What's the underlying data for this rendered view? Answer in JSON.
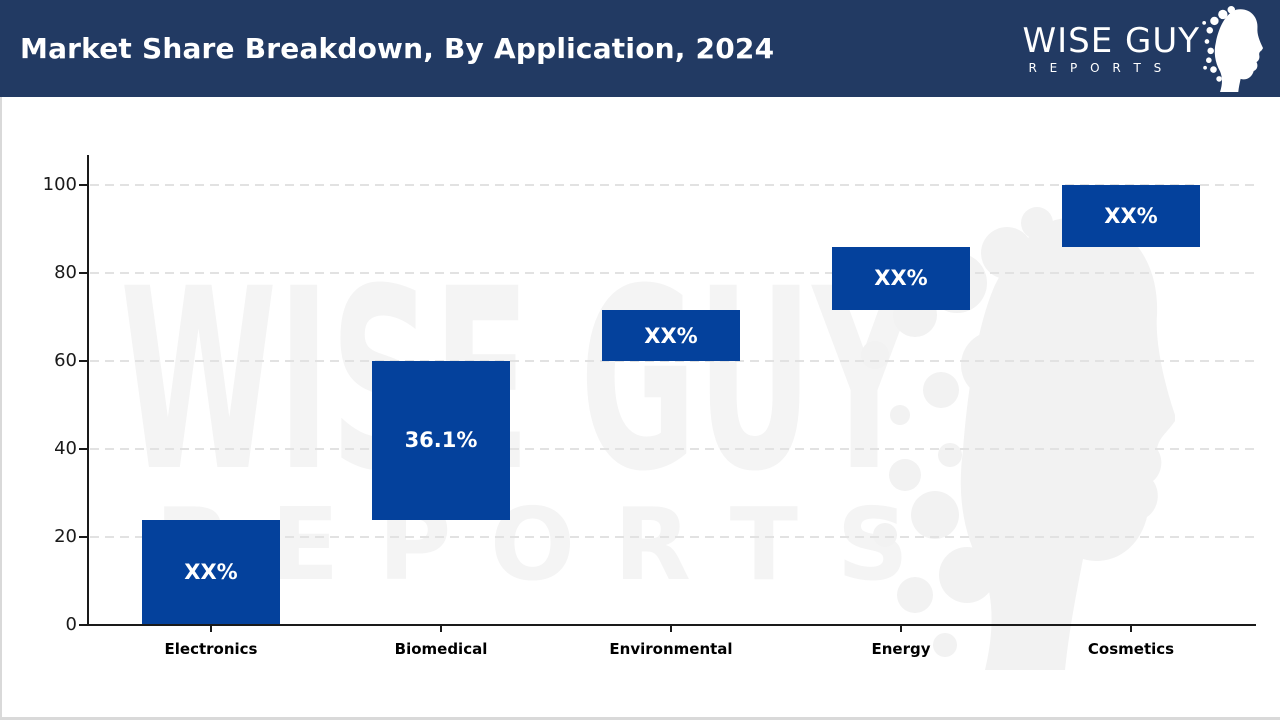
{
  "header": {
    "title": "Market Share Breakdown, By Application, 2024",
    "logo": {
      "wordmark": "WISE GUY",
      "tagline": "R E P O R T S",
      "head_icon": "dotted-head-profile"
    }
  },
  "watermark": {
    "wordmark": "WISE GUY",
    "tagline": "R E P O R T S",
    "head_icon": "dotted-head-profile"
  },
  "chart_data": {
    "type": "bar",
    "variant": "waterfall",
    "title": "Market Share Breakdown, By Application, 2024",
    "xlabel": "",
    "ylabel": "",
    "categories": [
      "Electronics",
      "Biomedical",
      "Environmental",
      "Energy",
      "Cosmetics"
    ],
    "segments": [
      {
        "category": "Electronics",
        "start": 0,
        "end": 23.9,
        "label": "XX%"
      },
      {
        "category": "Biomedical",
        "start": 23.9,
        "end": 60.0,
        "label": "36.1%"
      },
      {
        "category": "Environmental",
        "start": 60.0,
        "end": 71.5,
        "label": "XX%"
      },
      {
        "category": "Energy",
        "start": 71.5,
        "end": 86.0,
        "label": "XX%"
      },
      {
        "category": "Cosmetics",
        "start": 86.0,
        "end": 100.0,
        "label": "XX%"
      }
    ],
    "yticks": [
      0,
      20,
      40,
      60,
      80,
      100
    ],
    "ylim": [
      0,
      105
    ],
    "grid": "horizontal-dashed",
    "legend": "none",
    "bar_color": "#04419c",
    "bar_label_color": "#ffffff",
    "axis_color": "#1a1a1a",
    "gridline_color": "#e2e2e2",
    "header_color": "#223a63"
  }
}
